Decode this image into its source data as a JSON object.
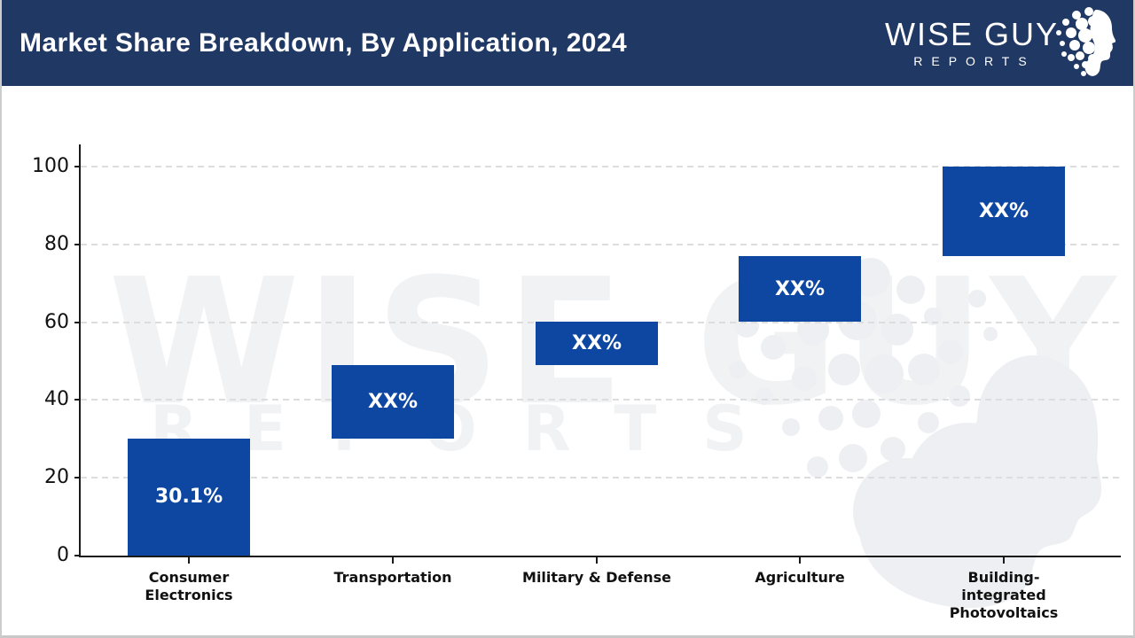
{
  "header": {
    "title": "Market Share Breakdown, By Application, 2024",
    "bg_color": "#1f3864",
    "logo": {
      "line1": "WISE GUY",
      "line2": "REPORTS"
    }
  },
  "watermark": {
    "line1": "WISE GUY",
    "line2": "REPORTS"
  },
  "chart_data": {
    "type": "bar",
    "subtype": "waterfall-floating-bars",
    "title": "Market Share Breakdown, By Application, 2024",
    "categories": [
      "Consumer Electronics",
      "Transportation",
      "Military & Defense",
      "Agriculture",
      "Building-integrated Photovoltaics"
    ],
    "category_lines": [
      [
        "Consumer",
        "Electronics"
      ],
      [
        "Transportation"
      ],
      [
        "Military & Defense"
      ],
      [
        "Agriculture"
      ],
      [
        "Building-",
        "integrated",
        "Photovoltaics"
      ]
    ],
    "segments": [
      {
        "category": "Consumer Electronics",
        "label": "30.1%",
        "start": 0,
        "end": 30.1
      },
      {
        "category": "Transportation",
        "label": "XX%",
        "start": 30.1,
        "end": 49.0
      },
      {
        "category": "Military & Defense",
        "label": "XX%",
        "start": 49.0,
        "end": 60.2
      },
      {
        "category": "Agriculture",
        "label": "XX%",
        "start": 60.2,
        "end": 76.9
      },
      {
        "category": "Building-integrated Photovoltaics",
        "label": "XX%",
        "start": 76.9,
        "end": 100
      }
    ],
    "xlabel": "",
    "ylabel": "",
    "ylim": [
      0,
      105
    ],
    "yticks": [
      0,
      20,
      40,
      60,
      80,
      100
    ],
    "grid": "horizontal-dashed",
    "legend": "none",
    "bar_color": "#0d47a1",
    "bar_label_color": "#ffffff",
    "axis_color": "#1a1a1a",
    "grid_color": "#dddddd"
  }
}
